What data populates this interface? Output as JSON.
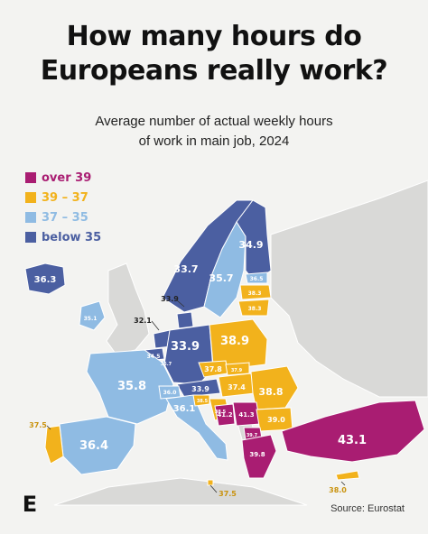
{
  "title_line1": "How many hours do",
  "title_line2": "Europeans really work?",
  "subtitle_line1": "Average number of actual weekly hours",
  "subtitle_line2": "of work in main job, 2024",
  "legend": [
    {
      "label": "over 39",
      "color": "#a91d72"
    },
    {
      "label": "39 – 37",
      "color": "#f2b21c"
    },
    {
      "label": "37 – 35",
      "color": "#8fbbe3"
    },
    {
      "label": "below 35",
      "color": "#4b5fa1"
    }
  ],
  "values": {
    "iceland": "36.3",
    "ireland": "35.1",
    "norway": "33.7",
    "sweden": "35.7",
    "finland": "34.9",
    "estonia": "36.5",
    "latvia": "38.3",
    "lithuania": "38.3",
    "denmark": "33.9",
    "netherlands": "32.1",
    "belgium": "34.5",
    "luxembourg": "35.7",
    "germany": "33.9",
    "poland": "38.9",
    "czechia": "37.8",
    "slovakia": "37.9",
    "austria": "33.9",
    "hungary": "37.4",
    "romania": "38.8",
    "france": "35.8",
    "switzerland": "36.0",
    "italy": "36.1",
    "slovenia": "38.5",
    "croatia": "38.5",
    "bosnia": "41.2",
    "serbia": "41.3",
    "bulgaria": "39.0",
    "north_macedonia": "39.7",
    "greece": "39.8",
    "turkey": "43.1",
    "cyprus": "38.0",
    "malta": "37.5",
    "spain": "36.4",
    "portugal": "37.5"
  },
  "source": "Source: Eurostat",
  "logo_letter": "E"
}
